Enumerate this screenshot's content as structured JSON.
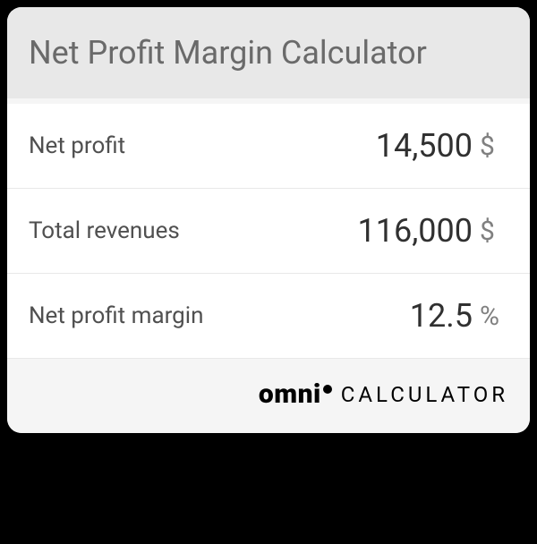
{
  "header": {
    "title": "Net Profit Margin Calculator"
  },
  "rows": [
    {
      "label": "Net profit",
      "value": "14,500",
      "unit": "$"
    },
    {
      "label": "Total revenues",
      "value": "116,000",
      "unit": "$"
    },
    {
      "label": "Net profit margin",
      "value": "12.5",
      "unit": "%"
    }
  ],
  "footer": {
    "brand_primary": "omni",
    "brand_secondary": "CALCULATOR"
  },
  "colors": {
    "card_background": "#f5f5f5",
    "header_background": "#e8e8e8",
    "row_background": "#ffffff",
    "header_text": "#6a6a6a",
    "label_text": "#505050",
    "value_text": "#303030",
    "unit_text": "#808080",
    "border": "#e8e8e8",
    "body_background": "#000000"
  },
  "typography": {
    "title_fontsize": 36,
    "label_fontsize": 26,
    "value_fontsize": 36,
    "unit_fontsize": 30,
    "brand_primary_fontsize": 30,
    "brand_secondary_fontsize": 24
  }
}
